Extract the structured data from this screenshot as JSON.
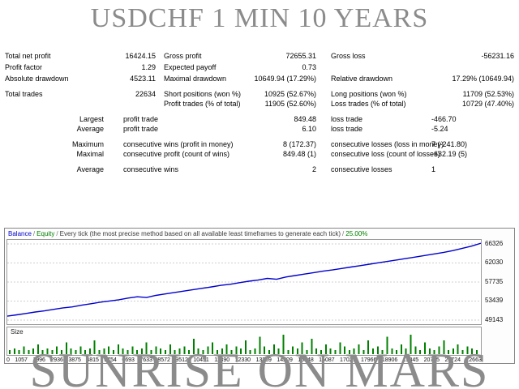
{
  "title": "USDCHF 1 MIN 10 YEARS",
  "watermark": "SUNRISE ON MARS",
  "colors": {
    "title_gray": "#8b8b8b",
    "balance_line": "#0000cc",
    "equity_green": "#008000",
    "size_bars": "#008000",
    "grid": "#cfcfcf"
  },
  "stats": {
    "rows": [
      {
        "cells": [
          "Total net profit",
          "16424.15",
          "Gross profit",
          "72655.31",
          "Gross loss",
          "-56231.16"
        ],
        "indent": false,
        "gap": false
      },
      {
        "cells": [
          "Profit factor",
          "1.29",
          "Expected payoff",
          "0.73",
          "",
          ""
        ],
        "indent": false,
        "gap": false
      },
      {
        "cells": [
          "Absolute drawdown",
          "4523.11",
          "Maximal drawdown",
          "10649.94 (17.29%)",
          "Relative drawdown",
          "17.29% (10649.94)"
        ],
        "indent": false,
        "gap": false
      },
      {
        "cells": [
          "Total trades",
          "22634",
          "Short positions (won %)",
          "10925 (52.67%)",
          "Long positions (won %)",
          "11709 (52.53%)"
        ],
        "indent": false,
        "gap": true
      },
      {
        "cells": [
          "",
          "",
          "Profit trades (% of total)",
          "11905 (52.60%)",
          "Loss trades (% of total)",
          "10729 (47.40%)"
        ],
        "indent": false,
        "gap": false
      },
      {
        "cells": [
          "Largest",
          "",
          "profit trade",
          "849.48",
          "loss trade",
          "-466.70"
        ],
        "indent": true,
        "gap": true
      },
      {
        "cells": [
          "Average",
          "",
          "profit trade",
          "6.10",
          "loss trade",
          "-5.24"
        ],
        "indent": true,
        "gap": false
      },
      {
        "cells": [
          "Maximum",
          "",
          "consecutive wins (profit in money)",
          "8 (172.37)",
          "consecutive losses (loss in money)",
          "7 (-241.80)"
        ],
        "indent": true,
        "gap": true
      },
      {
        "cells": [
          "Maximal",
          "",
          "consecutive profit (count of wins)",
          "849.48 (1)",
          "consecutive loss (count of losses)",
          "-632.19 (5)"
        ],
        "indent": true,
        "gap": false
      },
      {
        "cells": [
          "Average",
          "",
          "consecutive wins",
          "2",
          "consecutive losses",
          "1"
        ],
        "indent": true,
        "gap": true
      }
    ]
  },
  "chart": {
    "header": {
      "balance_label": "Balance",
      "equity_label": "Equity",
      "separator": "/",
      "method": "Every tick (the most precise method based on all available least timeframes to generate each tick)",
      "quality": "25.00%"
    },
    "size_label": "Size"
  },
  "chart_data": [
    {
      "type": "line",
      "name": "balance-curve",
      "x_range": [
        0,
        22663
      ],
      "y_ticks": [
        66326,
        62030,
        57735,
        53439,
        49143
      ],
      "x_ticks": [
        "0",
        "1057",
        "1996",
        "2936",
        "3875",
        "4815",
        "5754",
        "6693",
        "7633",
        "8572",
        "9512",
        "10451",
        "11390",
        "12330",
        "13269",
        "14209",
        "15148",
        "16087",
        "17027",
        "17966",
        "18906",
        "19845",
        "20785",
        "21724",
        "22663"
      ],
      "series": [
        {
          "name": "Balance",
          "color": "#0000cc",
          "values": [
            50000,
            50290,
            50610,
            50930,
            51180,
            51540,
            51860,
            52090,
            52470,
            52790,
            53140,
            53410,
            53690,
            54070,
            54360,
            54210,
            54680,
            55000,
            55330,
            55650,
            55970,
            56290,
            56600,
            56940,
            57190,
            57550,
            57870,
            58140,
            58510,
            58310,
            58830,
            59150,
            59490,
            59810,
            60140,
            60410,
            60750,
            61070,
            61390,
            61720,
            62040,
            62370,
            62690,
            63040,
            63340,
            63690,
            64040,
            64390,
            64790,
            65290,
            65790,
            66424
          ]
        }
      ]
    },
    {
      "type": "bar",
      "name": "trade-size",
      "label": "Size",
      "color": "#008000",
      "values": [
        2,
        3,
        2,
        4,
        2,
        3,
        5,
        2,
        3,
        2,
        4,
        2,
        6,
        3,
        2,
        4,
        2,
        3,
        7,
        2,
        3,
        4,
        2,
        5,
        3,
        2,
        4,
        2,
        3,
        6,
        2,
        4,
        3,
        2,
        5,
        2,
        3,
        4,
        2,
        8,
        3,
        2,
        4,
        6,
        2,
        3,
        5,
        2,
        4,
        3,
        7,
        2,
        3,
        9,
        4,
        2,
        5,
        3,
        10,
        2,
        4,
        3,
        6,
        2,
        8,
        3,
        2,
        5,
        3,
        2,
        6,
        4,
        2,
        3,
        5,
        2,
        7,
        3,
        4,
        2,
        9,
        3,
        2,
        5,
        3,
        10,
        4,
        2,
        6,
        3,
        2,
        4,
        7,
        2,
        3,
        5,
        2,
        4,
        3,
        2
      ]
    }
  ]
}
